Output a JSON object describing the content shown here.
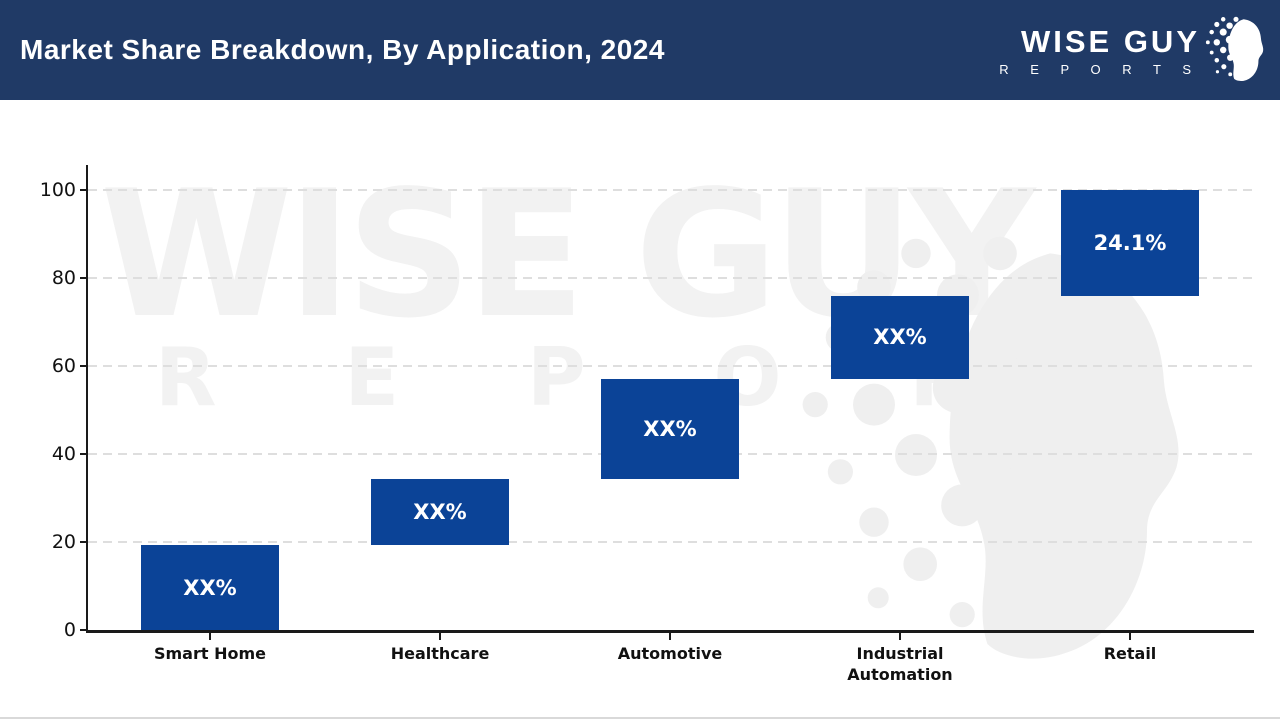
{
  "header": {
    "title": "Market Share Breakdown, By Application, 2024",
    "logo": {
      "name": "WISE GUY",
      "tagline": "R E P O R T S",
      "icon": "dotted-face-profile"
    }
  },
  "watermark": {
    "line1": "WISE GUY",
    "line2": "R E P O R T S",
    "icon": "dotted-face-profile"
  },
  "chart_data": {
    "type": "bar",
    "subtype": "waterfall",
    "title": "Market Share Breakdown, By Application, 2024",
    "xlabel": "",
    "ylabel": "",
    "categories": [
      "Smart Home",
      "Healthcare",
      "Automotive",
      "Industrial Automation",
      "Retail"
    ],
    "segments": [
      {
        "category": "Smart Home",
        "start": 0,
        "end": 19.3,
        "label": "XX%"
      },
      {
        "category": "Healthcare",
        "start": 19.3,
        "end": 34.4,
        "label": "XX%"
      },
      {
        "category": "Automotive",
        "start": 34.4,
        "end": 57.1,
        "label": "XX%"
      },
      {
        "category": "Industrial Automation",
        "start": 57.1,
        "end": 75.9,
        "label": "XX%"
      },
      {
        "category": "Retail",
        "start": 75.9,
        "end": 100,
        "label": "24.1%"
      }
    ],
    "yticks": [
      0,
      20,
      40,
      60,
      80,
      100
    ],
    "ylim": [
      0,
      106
    ],
    "grid": "horizontal-dashed",
    "legend": "none",
    "bar_color": "#0b4397"
  },
  "colors": {
    "header_bg": "#203a66",
    "bar": "#0b4397",
    "grid": "#dedede",
    "axis": "#1a1a1a",
    "watermark": "#f2f2f2",
    "bottom_rule": "#d9d9d9"
  }
}
